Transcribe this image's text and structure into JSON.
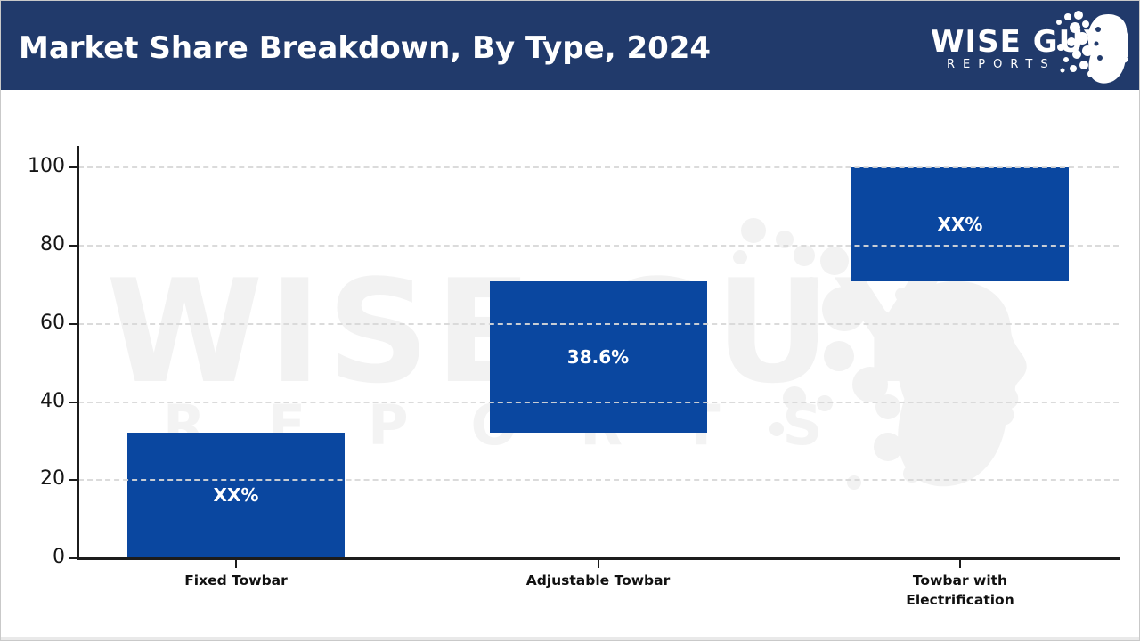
{
  "header": {
    "title": "Market Share Breakdown, By Type, 2024",
    "logo": {
      "line1": "WISE GUY",
      "line2": "REPORTS"
    }
  },
  "watermark": {
    "line1": "WISE GUY",
    "line2": "REPORTS"
  },
  "chart_data": {
    "type": "bar",
    "subtype": "waterfall",
    "title": "Market Share Breakdown, By Type, 2024",
    "categories": [
      "Fixed Towbar",
      "Adjustable Towbar",
      "Towbar with Electrification"
    ],
    "segments": [
      {
        "category": "Fixed Towbar",
        "start": 0,
        "end": 32.2,
        "label": "XX%"
      },
      {
        "category": "Adjustable Towbar",
        "start": 32.2,
        "end": 70.8,
        "label": "38.6%"
      },
      {
        "category": "Towbar with Electrification",
        "start": 70.8,
        "end": 100,
        "label": "XX%"
      }
    ],
    "value_axis": {
      "ticks": [
        0,
        20,
        40,
        60,
        80,
        100
      ],
      "lim": [
        0,
        105
      ]
    },
    "grid": "horizontal-dashed",
    "legend": false,
    "bar_color": "#0a47a0",
    "value_label_color": "#ffffff"
  },
  "colors": {
    "header_bg": "#213a6b",
    "axis": "#1c1c1c",
    "gridline": "#d9d9d9",
    "watermark": "#f2f2f2",
    "canvas": "#ffffff"
  }
}
